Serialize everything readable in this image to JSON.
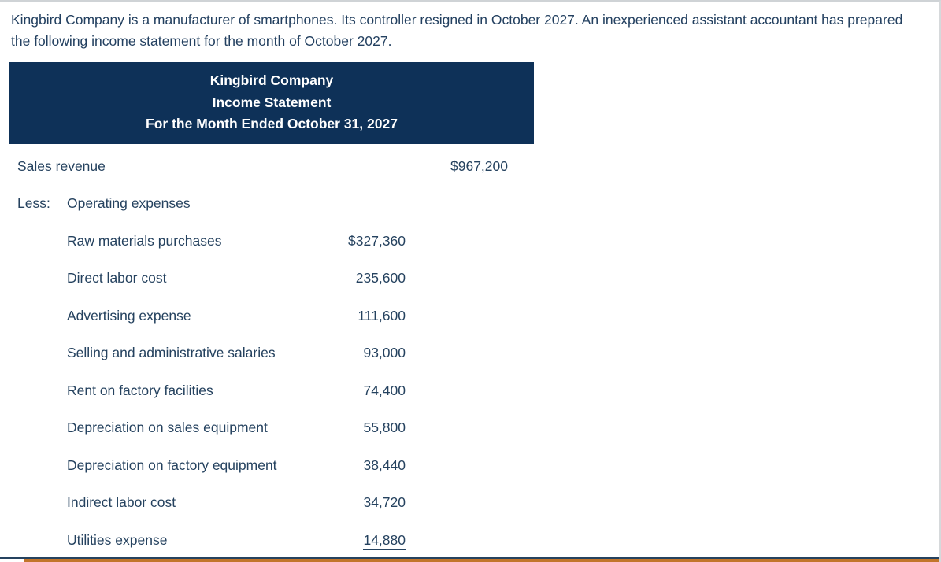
{
  "intro": {
    "text": "Kingbird Company is a manufacturer of smartphones. Its controller resigned in October 2027. An inexperienced assistant accountant has prepared the following income statement for the month of October 2027."
  },
  "statement": {
    "header": {
      "company": "Kingbird Company",
      "title": "Income Statement",
      "period": "For the Month Ended October 31, 2027"
    },
    "sales": {
      "label": "Sales revenue",
      "amount": "$967,200"
    },
    "less": {
      "word": "Less:",
      "label": "Operating expenses"
    },
    "expenses": [
      {
        "label": "Raw materials purchases",
        "amount": "$327,360"
      },
      {
        "label": "Direct labor cost",
        "amount": "235,600"
      },
      {
        "label": "Advertising expense",
        "amount": "111,600"
      },
      {
        "label": "Selling and administrative salaries",
        "amount": "93,000"
      },
      {
        "label": "Rent on factory facilities",
        "amount": "74,400"
      },
      {
        "label": "Depreciation on sales equipment",
        "amount": "55,800"
      },
      {
        "label": "Depreciation on factory equipment",
        "amount": "38,440"
      },
      {
        "label": "Indirect labor cost",
        "amount": "34,720"
      },
      {
        "label": "Utilities expense",
        "amount": "14,880"
      }
    ]
  },
  "colors": {
    "header_background": "#0e3158",
    "text": "#25425f",
    "bottom_strip": "#c2752b"
  }
}
